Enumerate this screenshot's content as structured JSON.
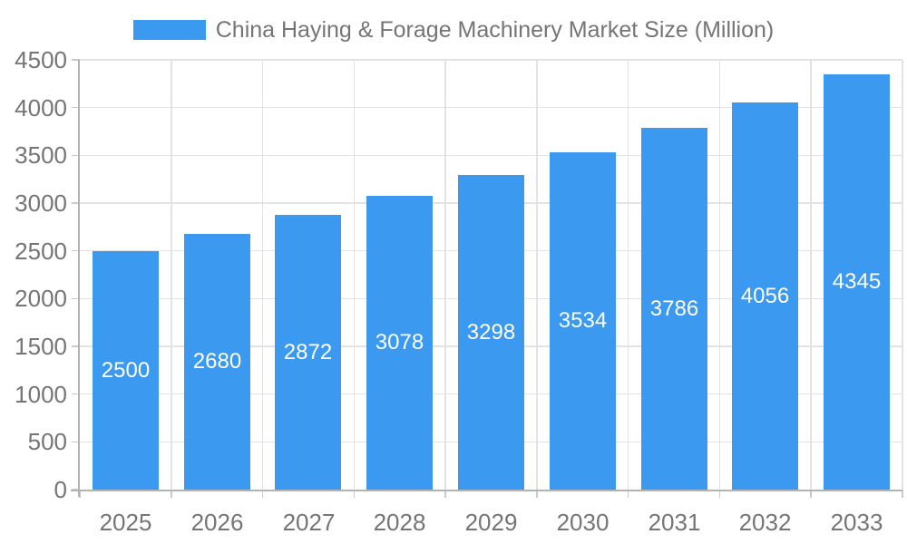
{
  "chart_data": {
    "type": "bar",
    "title": "China Haying & Forage Machinery Market Size (Million)",
    "categories": [
      "2025",
      "2026",
      "2027",
      "2028",
      "2029",
      "2030",
      "2031",
      "2032",
      "2033"
    ],
    "values": [
      2500,
      2680,
      2872,
      3078,
      3298,
      3534,
      3786,
      4056,
      4345
    ],
    "value_labels": [
      "2500",
      "2680",
      "2872",
      "3078",
      "3298",
      "3534",
      "3786",
      "4056",
      "4345"
    ],
    "xlabel": "",
    "ylabel": "",
    "ylim": [
      0,
      4500
    ],
    "yticks": [
      0,
      500,
      1000,
      1500,
      2000,
      2500,
      3000,
      3500,
      4000,
      4500
    ],
    "grid": true,
    "legend_position": "top-center",
    "colors": {
      "bar": "#3B99F0",
      "axis_text": "#757575",
      "value_label": "#FFFFFF",
      "gridline": "#E3E3E3",
      "tick_mark": "#C9C9C9",
      "axis_line": "#B3B3B3",
      "background": "#FFFFFF"
    }
  }
}
